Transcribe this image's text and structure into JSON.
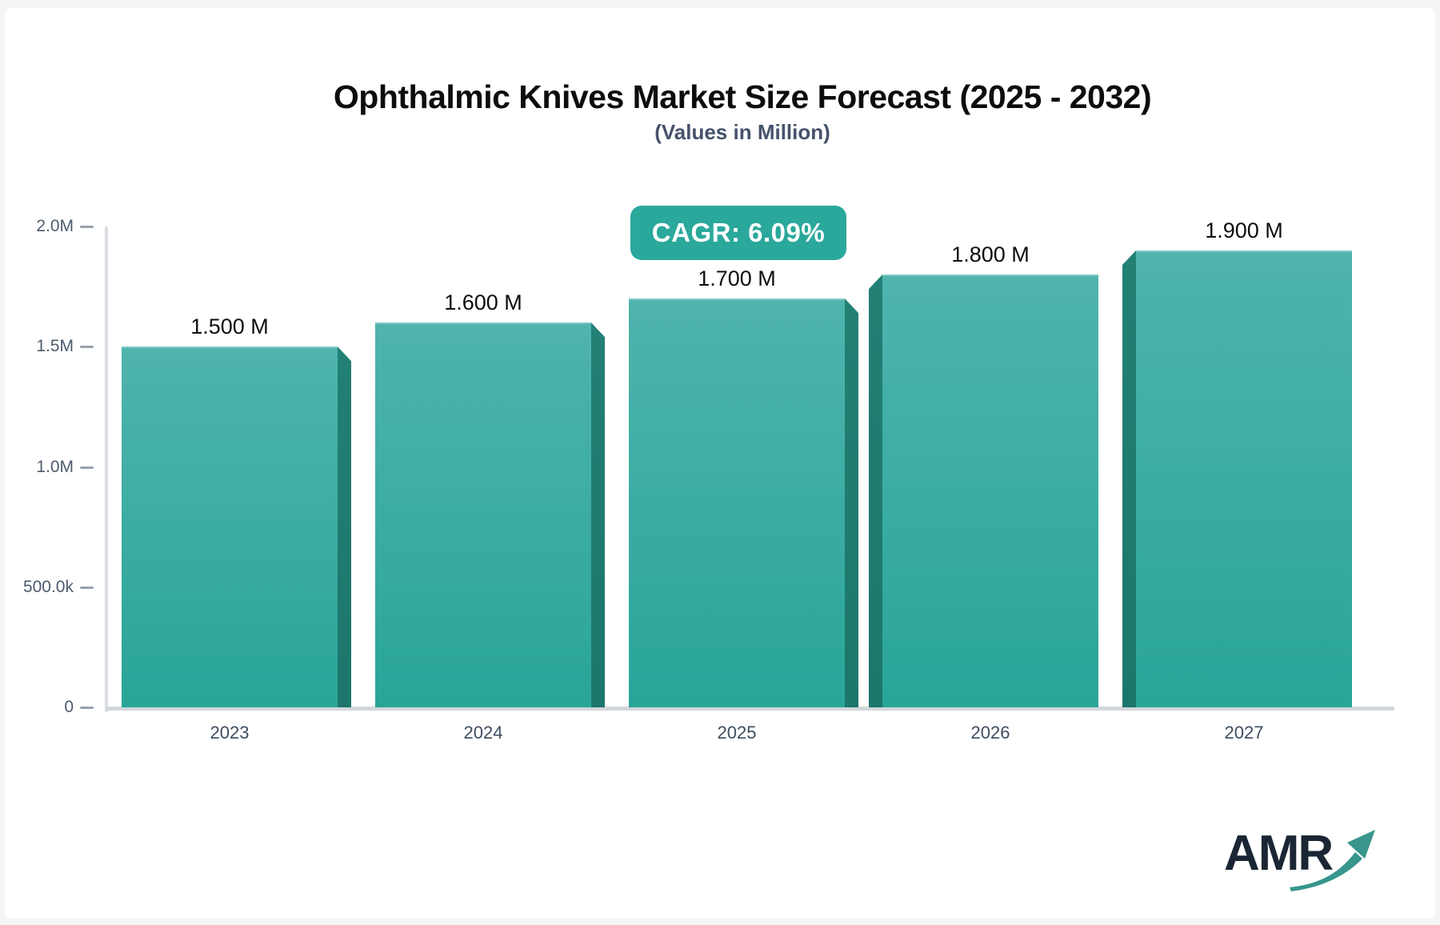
{
  "header": {
    "title": "Ophthalmic Knives Market Size Forecast (2025 - 2032)",
    "subtitle": "(Values in Million)"
  },
  "badge": {
    "label": "CAGR: 6.09%",
    "background_color": "#2aa89b",
    "text_color": "#ffffff"
  },
  "chart_data": {
    "type": "bar",
    "title": "Ophthalmic Knives Market Size Forecast (2025 - 2032)",
    "subtitle": "(Values in Million)",
    "categories": [
      "2023",
      "2024",
      "2025",
      "2026",
      "2027"
    ],
    "values": [
      1500000,
      1600000,
      1700000,
      1800000,
      1900000
    ],
    "value_labels": [
      "1.500 M",
      "1.600 M",
      "1.700 M",
      "1.800 M",
      "1.900 M"
    ],
    "series_name": "Market Size",
    "xlabel": "",
    "ylabel": "",
    "ylim": [
      0,
      2000000
    ],
    "y_ticks": [
      {
        "label": "0",
        "value": 0
      },
      {
        "label": "500.0k",
        "value": 500000
      },
      {
        "label": "1.0M",
        "value": 1000000
      },
      {
        "label": "1.5M",
        "value": 1500000
      },
      {
        "label": "2.0M",
        "value": 2000000
      }
    ],
    "grid": false,
    "legend": false,
    "bar_style": "3d-beveled",
    "depth_side": [
      "right",
      "right",
      "right",
      "left",
      "left"
    ],
    "colors": {
      "bar_face_top": "#4fb4ad",
      "bar_face_bottom": "#29a598",
      "bar_side_top": "#228075",
      "bar_side_bottom": "#1d766b",
      "axis_line": "#dadde2",
      "baseline": "#d3d7dc",
      "tick_text": "#4d5b6d",
      "category_text": "#3e4d60",
      "value_text": "#0d0e0f"
    }
  },
  "logo": {
    "text": "AMR",
    "text_color": "#1b2634",
    "arrow_color": "#38968d",
    "arrow_icon": "growth-arrow-icon"
  }
}
